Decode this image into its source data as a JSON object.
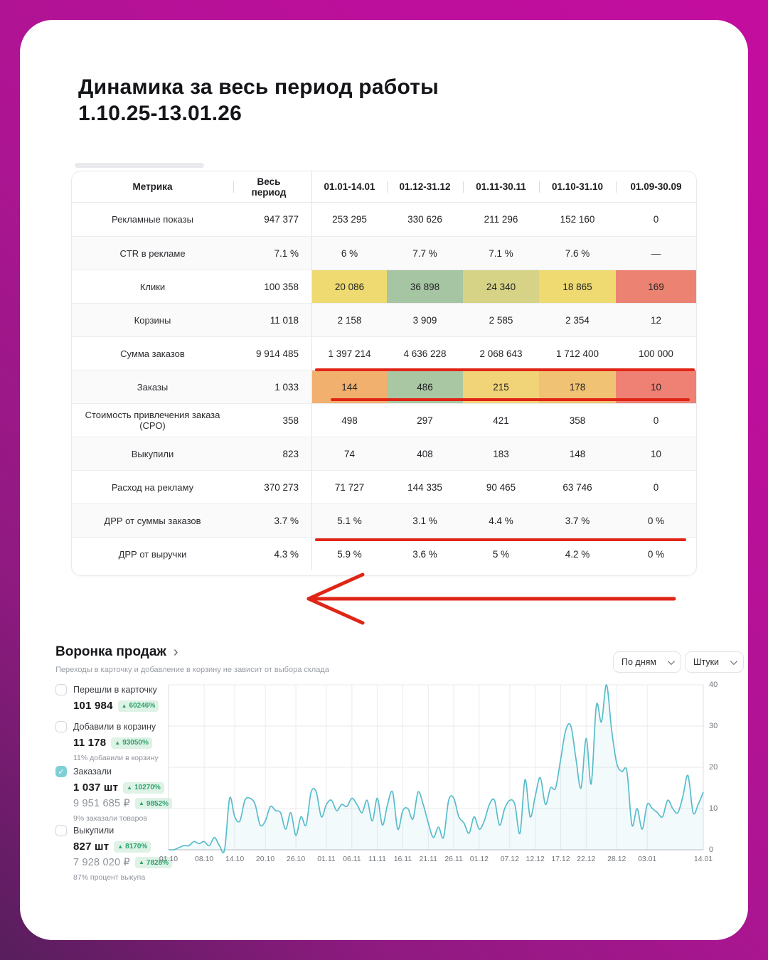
{
  "header": {
    "title_line1": "Динамика за весь период работы",
    "title_line2": "1.10.25-13.01.26"
  },
  "metrics_table": {
    "columns": [
      "Метрика",
      "Весь период",
      "01.01-14.01",
      "01.12-31.12",
      "01.11-30.11",
      "01.10-31.10",
      "01.09-30.09"
    ],
    "rows": [
      {
        "label": "Рекламные показы",
        "total": "947 377",
        "values": [
          "253 295",
          "330 626",
          "211 296",
          "152 160",
          "0"
        ]
      },
      {
        "label": "CTR в рекламе",
        "total": "7.1 %",
        "values": [
          "6 %",
          "7.7 %",
          "7.1 %",
          "7.6 %",
          "—"
        ]
      },
      {
        "label": "Клики",
        "total": "100 358",
        "values": [
          "20 086",
          "36 898",
          "24 340",
          "18 865",
          "169"
        ],
        "cell_colors": [
          "#eeda71",
          "#a6c5a2",
          "#d7d386",
          "#eeda71",
          "#ec8372"
        ]
      },
      {
        "label": "Корзины",
        "total": "11 018",
        "values": [
          "2 158",
          "3 909",
          "2 585",
          "2 354",
          "12"
        ]
      },
      {
        "label": "Сумма заказов",
        "total": "9 914 485",
        "values": [
          "1 397 214",
          "4 636 228",
          "2 068 643",
          "1 712 400",
          "100 000"
        ]
      },
      {
        "label": "Заказы",
        "total": "1 033",
        "values": [
          "144",
          "486",
          "215",
          "178",
          "10"
        ],
        "cell_colors": [
          "#f1b06e",
          "#a9c7a3",
          "#f1d478",
          "#f0c273",
          "#ee8173"
        ]
      },
      {
        "label": "Стоимость привлечения заказа (СРО)",
        "total": "358",
        "values": [
          "498",
          "297",
          "421",
          "358",
          "0"
        ]
      },
      {
        "label": "Выкупили",
        "total": "823",
        "values": [
          "74",
          "408",
          "183",
          "148",
          "10"
        ]
      },
      {
        "label": "Расход на рекламу",
        "total": "370 273",
        "values": [
          "71 727",
          "144 335",
          "90 465",
          "63 746",
          "0"
        ]
      },
      {
        "label": "ДРР от суммы заказов",
        "total": "3.7 %",
        "values": [
          "5.1 %",
          "3.1 %",
          "4.4 %",
          "3.7 %",
          "0 %"
        ]
      },
      {
        "label": "ДРР от выручки",
        "total": "4.3 %",
        "values": [
          "5.9 %",
          "3.6 %",
          "5 %",
          "4.2 %",
          "0 %"
        ]
      }
    ]
  },
  "annotation_color": "#e02517",
  "funnel": {
    "title": "Воронка продаж",
    "chevron": "›",
    "subtitle": "Переходы в карточку и добавление в корзину не зависит от выбора склада",
    "controls": [
      {
        "label": "По дням"
      },
      {
        "label": "Штуки"
      }
    ],
    "legend": [
      {
        "label": "Перешли в карточку",
        "checked": false,
        "lines": [
          {
            "value": "101 984",
            "delta": "60246%",
            "muted": false
          }
        ],
        "note": ""
      },
      {
        "label": "Добавили в корзину",
        "checked": false,
        "lines": [
          {
            "value": "11 178",
            "delta": "93050%",
            "muted": false
          }
        ],
        "note": "11% добавили в корзину"
      },
      {
        "label": "Заказали",
        "checked": true,
        "lines": [
          {
            "value": "1 037 шт",
            "delta": "10270%",
            "muted": false
          },
          {
            "value": "9 951 685 ₽",
            "delta": "9852%",
            "muted": true
          }
        ],
        "note": "9% заказали товаров"
      },
      {
        "label": "Выкупили",
        "checked": false,
        "lines": [
          {
            "value": "827 шт",
            "delta": "8170%",
            "muted": false
          },
          {
            "value": "7 928 020 ₽",
            "delta": "7828%",
            "muted": true
          }
        ],
        "note": "87% процент выкупа"
      }
    ]
  },
  "chart_data": {
    "type": "line",
    "title": "Воронка продаж — Заказали, шт (по дням)",
    "x_tick_labels": [
      "01.10",
      "08.10",
      "14.10",
      "20.10",
      "26.10",
      "01.11",
      "06.11",
      "11.11",
      "16.11",
      "21.11",
      "26.11",
      "01.12",
      "07.12",
      "12.12",
      "17.12",
      "22.12",
      "28.12",
      "03.01",
      "14.01"
    ],
    "x_tick_days": [
      0,
      7,
      13,
      19,
      25,
      31,
      36,
      41,
      46,
      51,
      56,
      61,
      67,
      72,
      77,
      82,
      88,
      94,
      105
    ],
    "y_ticks": [
      0,
      10,
      20,
      30,
      40
    ],
    "ylim": [
      0,
      40
    ],
    "grid": true,
    "legend_position": "left",
    "series": [
      {
        "name": "Заказали",
        "color": "#58bccb",
        "values": [
          0,
          0,
          0.5,
          1,
          1,
          2,
          1.5,
          2,
          1,
          3,
          1,
          0,
          12.5,
          8,
          7,
          12,
          12.5,
          11,
          6,
          7,
          10.5,
          9.5,
          9,
          5,
          9,
          3.5,
          8,
          6,
          14,
          14,
          8,
          11,
          12,
          9.5,
          11,
          10.5,
          12.5,
          11,
          9,
          12,
          7,
          12.5,
          6,
          11,
          14,
          5,
          9.5,
          10,
          7.5,
          14,
          11,
          6.5,
          3,
          5.5,
          3,
          12,
          12.5,
          8,
          6.5,
          4,
          8,
          5,
          7,
          11,
          12,
          6,
          10,
          12,
          11,
          4,
          17,
          8,
          13,
          17.5,
          11,
          15,
          15,
          22,
          29,
          30,
          22,
          15,
          27,
          16,
          35,
          31,
          40,
          29,
          21,
          19,
          19,
          6,
          10,
          5,
          11,
          10,
          9,
          8,
          12,
          10,
          9,
          13,
          18,
          9,
          11,
          14
        ]
      }
    ]
  }
}
